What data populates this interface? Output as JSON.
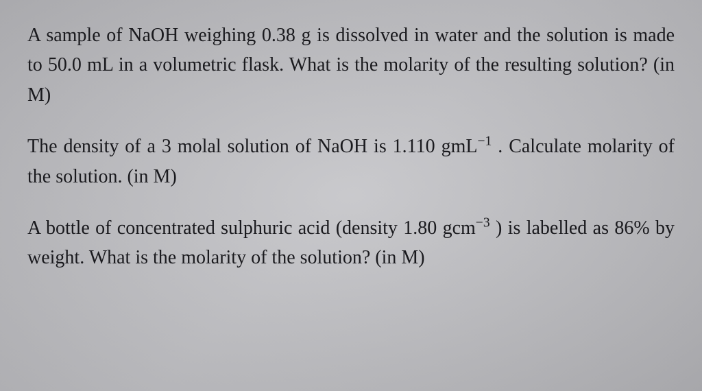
{
  "background_color": "#b8b8bc",
  "text_color": "#1a1a1e",
  "font_family": "Georgia, Times New Roman, serif",
  "body_fontsize": 28,
  "line_height": 1.55,
  "problems": [
    {
      "text": "A sample of NaOH weighing 0.38 g is dissolved in water and the solution is made to 50.0 mL in a volumetric flask. What is the molarity of the resulting solution? (in M)"
    },
    {
      "prefix": "The density of a 3 molal solution of NaOH is 1.110 gmL",
      "exponent": "−1",
      "suffix": " . Calculate molarity of the solution. (in M)"
    },
    {
      "prefix": "A bottle of concentrated sulphuric acid (density 1.80 gcm",
      "exponent": "−3",
      "suffix": " ) is labelled as 86% by weight. What is the molarity of the solution? (in M)"
    }
  ]
}
